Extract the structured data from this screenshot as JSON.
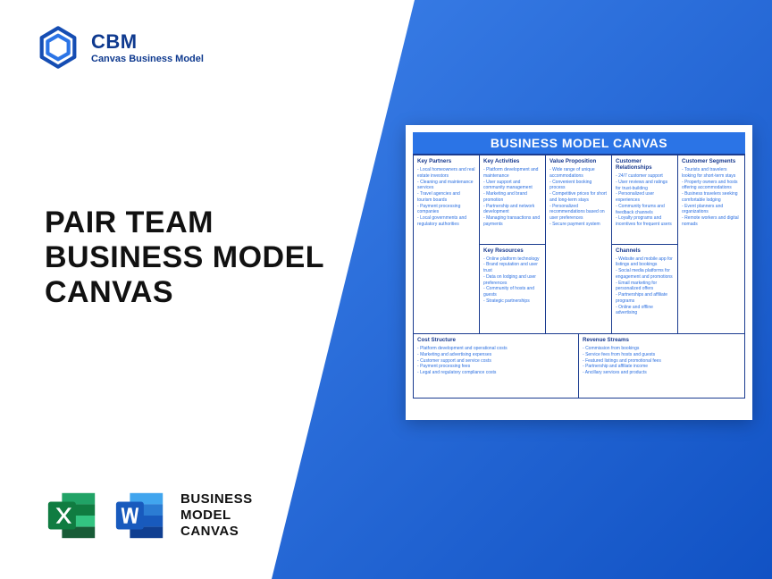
{
  "logo": {
    "brand": "CBM",
    "tagline": "Canvas Business Model"
  },
  "title": {
    "line1": "PAIR TEAM",
    "line2": "BUSINESS MODEL",
    "line3": "CANVAS"
  },
  "bottom": {
    "line1": "BUSINESS",
    "line2": "MODEL",
    "line3": "CANVAS"
  },
  "canvas": {
    "title": "BUSINESS MODEL CANVAS",
    "partners": {
      "header": "Key Partners",
      "items": [
        "Local homeowners and real estate investors",
        "Cleaning and maintenance services",
        "Travel agencies and tourism boards",
        "Payment processing companies",
        "Local governments and regulatory authorities"
      ]
    },
    "activities": {
      "header": "Key Activities",
      "items": [
        "Platform development and maintenance",
        "User support and community management",
        "Marketing and brand promotion",
        "Partnership and network development",
        "Managing transactions and payments"
      ]
    },
    "resources": {
      "header": "Key Resources",
      "items": [
        "Online platform technology",
        "Brand reputation and user trust",
        "Data on lodging and user preferences",
        "Community of hosts and guests",
        "Strategic partnerships"
      ]
    },
    "value": {
      "header": "Value Proposition",
      "items": [
        "Wide range of unique accommodations",
        "Convenient booking process",
        "Competitive prices for short and long-term stays",
        "Personalized recommendations based on user preferences",
        "Secure payment system"
      ]
    },
    "relationships": {
      "header": "Customer Relationships",
      "items": [
        "24/7 customer support",
        "User reviews and ratings for trust-building",
        "Personalized user experiences",
        "Community forums and feedback channels",
        "Loyalty programs and incentives for frequent users"
      ]
    },
    "channels": {
      "header": "Channels",
      "items": [
        "Website and mobile app for listings and bookings",
        "Social media platforms for engagement and promotions",
        "Email marketing for personalized offers",
        "Partnerships and affiliate programs",
        "Online and offline advertising"
      ]
    },
    "segments": {
      "header": "Customer Segments",
      "items": [
        "Tourists and travelers looking for short-term stays",
        "Property owners and hosts offering accommodations",
        "Business travelers seeking comfortable lodging",
        "Event planners and organizations",
        "Remote workers and digital nomads"
      ]
    },
    "cost": {
      "header": "Cost Structure",
      "items": [
        "Platform development and operational costs",
        "Marketing and advertising expenses",
        "Customer support and service costs",
        "Payment processing fees",
        "Legal and regulatory compliance costs"
      ]
    },
    "revenue": {
      "header": "Revenue Streams",
      "items": [
        "Commission from bookings",
        "Service fees from hosts and guests",
        "Featured listings and promotional fees",
        "Partnership and affiliate income",
        "Ancillary services and products"
      ]
    }
  },
  "colors": {
    "brand_blue": "#0f3a8f",
    "canvas_header": "#2b74e6",
    "excel_green": "#107c41",
    "word_blue": "#185abd"
  }
}
